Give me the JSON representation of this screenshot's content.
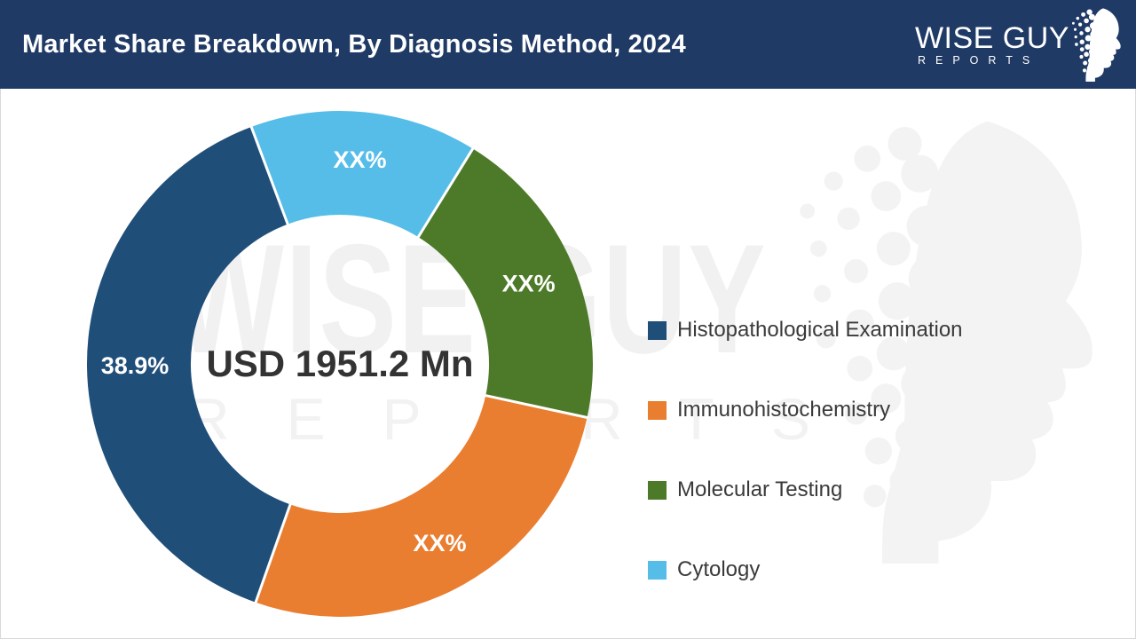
{
  "header": {
    "title": "Market Share Breakdown, By Diagnosis Method, 2024",
    "logo": {
      "name": "WISE GUY",
      "subtitle": "REPORTS"
    }
  },
  "watermark": {
    "line1": "WISE GUY",
    "line2": "REPORTS"
  },
  "chart_data": {
    "type": "pie",
    "subtype": "donut",
    "title": "Market Share Breakdown, By Diagnosis Method, 2024",
    "center_label": "USD 1951.2 Mn",
    "start_angle_deg": 110.5,
    "direction": "counterclockwise",
    "legend_position": "right",
    "segments": [
      {
        "label": "Histopathological Examination",
        "color": "#1F4E79",
        "value_pct": 38.9,
        "display_label": "38.9%"
      },
      {
        "label": "Immunohistochemistry",
        "color": "#E97E30",
        "value_pct": 27.0,
        "display_label": "XX%"
      },
      {
        "label": "Molecular Testing",
        "color": "#4D7A29",
        "value_pct": 19.6,
        "display_label": "XX%"
      },
      {
        "label": "Cytology",
        "color": "#55BDE8",
        "value_pct": 14.5,
        "display_label": "XX%"
      }
    ]
  }
}
